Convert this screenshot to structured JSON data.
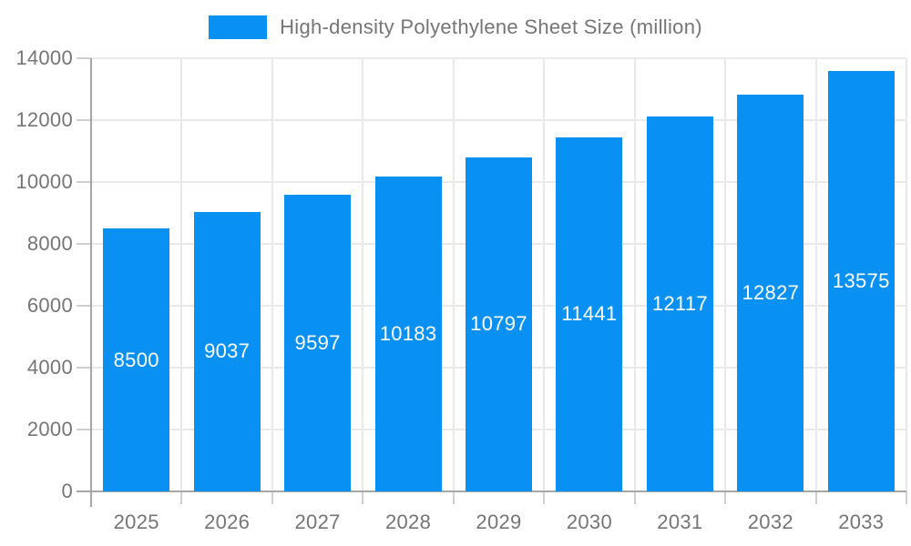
{
  "legend": {
    "label": "High-density Polyethylene Sheet Size (million)"
  },
  "colors": {
    "bar": "#0890f2",
    "axis_text": "#757575",
    "bar_label_text": "#ffffff",
    "gridline": "#e9e9e9",
    "axis_line": "#a6a6a6",
    "tick": "#cfcfcf"
  },
  "chart_data": {
    "type": "bar",
    "categories": [
      "2025",
      "2026",
      "2027",
      "2028",
      "2029",
      "2030",
      "2031",
      "2032",
      "2033"
    ],
    "series": [
      {
        "name": "High-density Polyethylene Sheet Size (million)",
        "values": [
          8500,
          9037,
          9597,
          10183,
          10797,
          11441,
          12117,
          12827,
          13575
        ],
        "color": "#0890f2"
      }
    ],
    "title": "",
    "xlabel": "",
    "ylabel": "",
    "ylim": [
      0,
      14000
    ],
    "yticks": [
      0,
      2000,
      4000,
      6000,
      8000,
      10000,
      12000,
      14000
    ],
    "grid": true,
    "legend_position": "top-center",
    "bar_value_labels": "inside-vertical-center, white"
  }
}
